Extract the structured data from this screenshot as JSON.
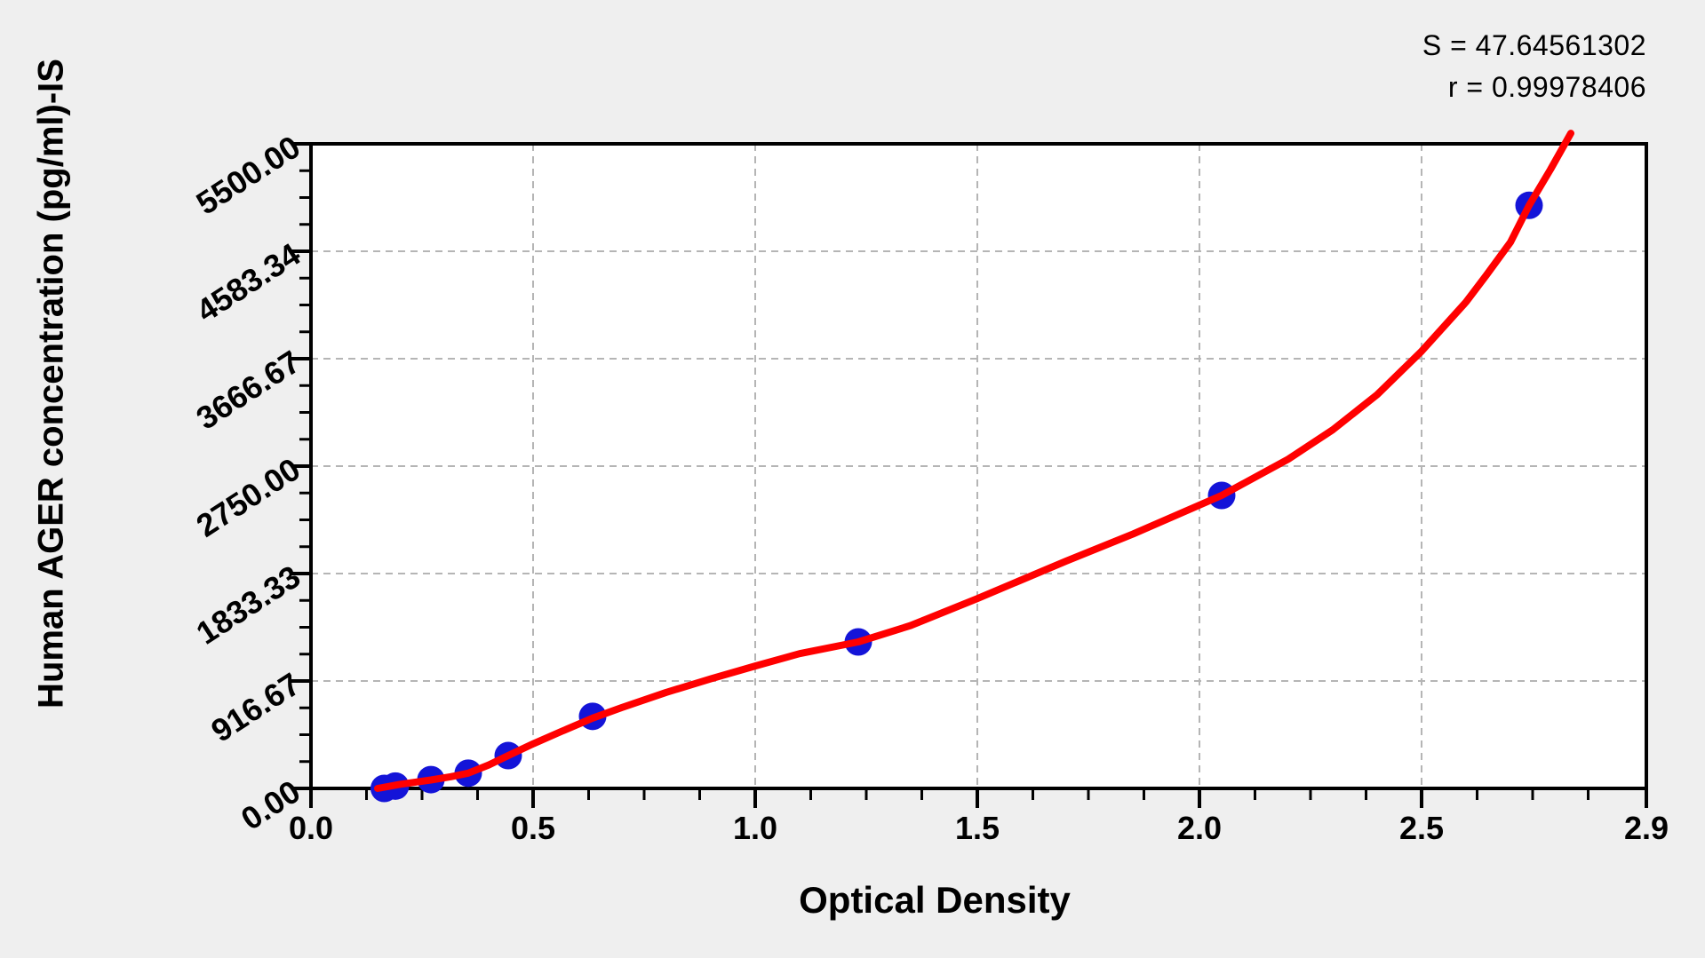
{
  "stats": {
    "s_line": "S = 47.64561302",
    "r_line": "r = 0.99978406"
  },
  "colors": {
    "background": "#efefef",
    "plot_background": "#ffffff",
    "curve": "#ff0000",
    "points": "#1414d8",
    "grid": "#b5b5b5",
    "axis": "#000000",
    "text": "#000000"
  },
  "chart_data": {
    "type": "scatter",
    "title": "",
    "xlabel": "Optical Density",
    "ylabel": "Human AGER concentration (pg/ml)-IS",
    "legend": [],
    "grid": "dashed at major ticks",
    "x_axis": {
      "min": 0,
      "axis_end_value": 3.006,
      "major_tick_values": [
        0,
        0.5,
        1.0,
        1.5,
        2.0,
        2.5
      ],
      "major_tick_labels": [
        "0.0",
        "0.5",
        "1.0",
        "1.5",
        "2.0",
        "2.5"
      ],
      "end_tick_label": "2.9",
      "minor_step": 0.125
    },
    "y_axis": {
      "min": 0,
      "max": 5500,
      "major_tick_values": [
        0,
        916.67,
        1833.33,
        2750.0,
        3666.67,
        4583.34,
        5500.0
      ],
      "major_tick_labels": [
        "0.00",
        "916.67",
        "1833.33",
        "2750.00",
        "3666.67",
        "4583.34",
        "5500.00"
      ],
      "minor_per_major": 4
    },
    "points": [
      {
        "od": 0.165,
        "conc": 0
      },
      {
        "od": 0.19,
        "conc": 20
      },
      {
        "od": 0.27,
        "conc": 75
      },
      {
        "od": 0.354,
        "conc": 130
      },
      {
        "od": 0.444,
        "conc": 280
      },
      {
        "od": 0.634,
        "conc": 615
      },
      {
        "od": 1.232,
        "conc": 1250
      },
      {
        "od": 2.05,
        "conc": 2500
      },
      {
        "od": 2.742,
        "conc": 4975
      }
    ],
    "fit_curve_samples": [
      [
        0.15,
        0
      ],
      [
        0.2,
        35
      ],
      [
        0.27,
        72
      ],
      [
        0.315,
        100
      ],
      [
        0.354,
        130
      ],
      [
        0.4,
        200
      ],
      [
        0.444,
        280
      ],
      [
        0.5,
        380
      ],
      [
        0.56,
        480
      ],
      [
        0.634,
        600
      ],
      [
        0.7,
        690
      ],
      [
        0.8,
        820
      ],
      [
        0.9,
        935
      ],
      [
        1.0,
        1045
      ],
      [
        1.1,
        1150
      ],
      [
        1.232,
        1250
      ],
      [
        1.35,
        1390
      ],
      [
        1.5,
        1620
      ],
      [
        1.7,
        1940
      ],
      [
        1.85,
        2170
      ],
      [
        2.05,
        2500
      ],
      [
        2.2,
        2810
      ],
      [
        2.3,
        3060
      ],
      [
        2.4,
        3360
      ],
      [
        2.5,
        3730
      ],
      [
        2.6,
        4150
      ],
      [
        2.646,
        4380
      ],
      [
        2.7,
        4660
      ],
      [
        2.742,
        4975
      ],
      [
        2.79,
        5280
      ],
      [
        2.836,
        5590
      ]
    ],
    "fit_stats": {
      "S": 47.64561302,
      "r": 0.99978406
    }
  }
}
